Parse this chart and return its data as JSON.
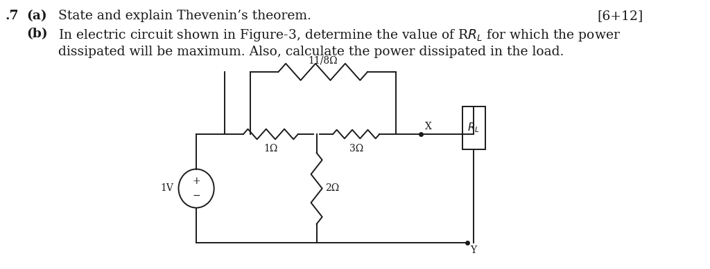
{
  "bg_color": "#ffffff",
  "text_color": "#1a1a1a",
  "line_color": "#1a1a1a",
  "question_number": ".7",
  "part_a_label": "(a)",
  "part_a_text": "State and explain Thevenin’s theorem.",
  "part_b_label": "(b)",
  "part_b_text1": "In electric circuit shown in Figure-3, determine the value of R",
  "part_b_sub": "L",
  "part_b_text1_end": " for which the power",
  "part_b_text2": "dissipated will be maximum. Also, calculate the power dissipated in the load.",
  "marks": "[6+12]",
  "r1_label": "1Ω",
  "r2_label": "3Ω",
  "r3_label": "11/8Ω",
  "r4_label": "2Ω",
  "rl_label": "Rₗ",
  "vs_label": "1V",
  "node_x": "X",
  "node_y": "Y"
}
